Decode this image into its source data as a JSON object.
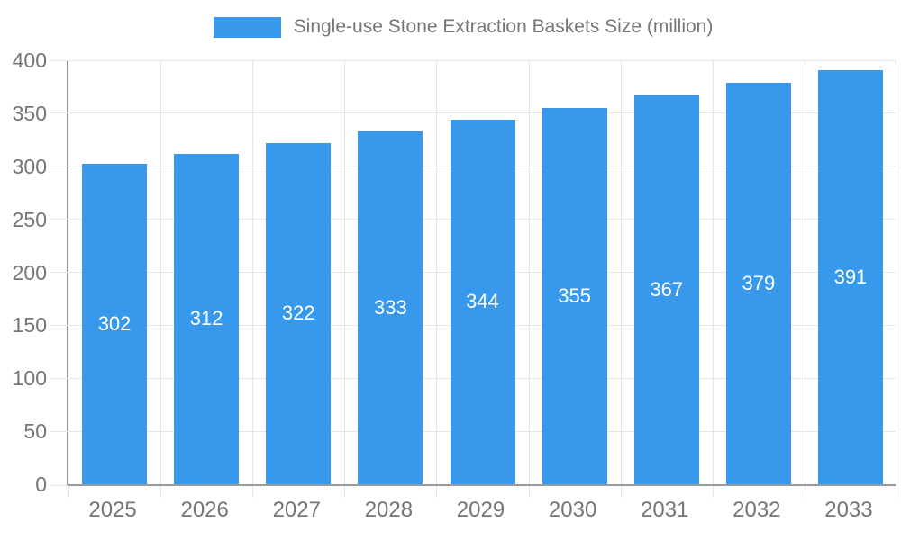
{
  "chart_data": {
    "type": "bar",
    "title": "Single-use Stone Extraction Baskets Size (million)",
    "legend": [
      "Single-use Stone Extraction Baskets Size (million)"
    ],
    "legend_position": "top-center",
    "categories": [
      "2025",
      "2026",
      "2027",
      "2028",
      "2029",
      "2030",
      "2031",
      "2032",
      "2033"
    ],
    "values": [
      302,
      312,
      322,
      333,
      344,
      355,
      367,
      379,
      391
    ],
    "xlabel": "",
    "ylabel": "",
    "ylim": [
      0,
      400
    ],
    "yticks": [
      0,
      50,
      100,
      150,
      200,
      250,
      300,
      350,
      400
    ],
    "grid": true,
    "value_labels": "centered-inside-bars",
    "colors": {
      "bar": "#3898ec",
      "grid": "#e5e5e5",
      "axis": "#999999",
      "tick_label": "#757575",
      "value_label": "#ffffff",
      "background": "#ffffff"
    }
  }
}
